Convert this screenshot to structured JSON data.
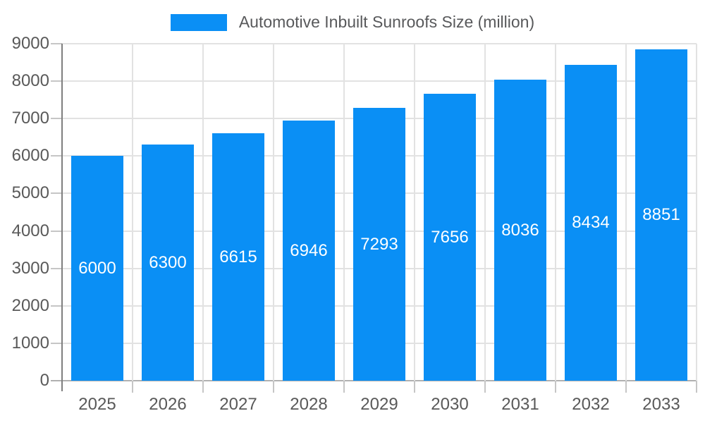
{
  "legend": {
    "label": "Automotive Inbuilt Sunroofs Size (million)"
  },
  "colors": {
    "accent": "#0a8ff5",
    "legend_text": "#58595b",
    "axis_text": "#595959",
    "grid": "#e2e2e2",
    "tick": "#c6c6c6",
    "baseline": "#b0b0b0",
    "axis_line": "#7f7f7f",
    "value_label": "#ffffff",
    "background": "#ffffff"
  },
  "chart_data": {
    "type": "bar",
    "title": "Automotive Inbuilt Sunroofs Size (million)",
    "categories": [
      "2025",
      "2026",
      "2027",
      "2028",
      "2029",
      "2030",
      "2031",
      "2032",
      "2033"
    ],
    "values": [
      6000,
      6300,
      6615,
      6946,
      7293,
      7656,
      8036,
      8434,
      8851
    ],
    "xlabel": "",
    "ylabel": "",
    "ylim": [
      0,
      9000
    ],
    "ytick_step": 1000,
    "grid": true,
    "legend_position": "top",
    "value_labels": "inside-center"
  }
}
